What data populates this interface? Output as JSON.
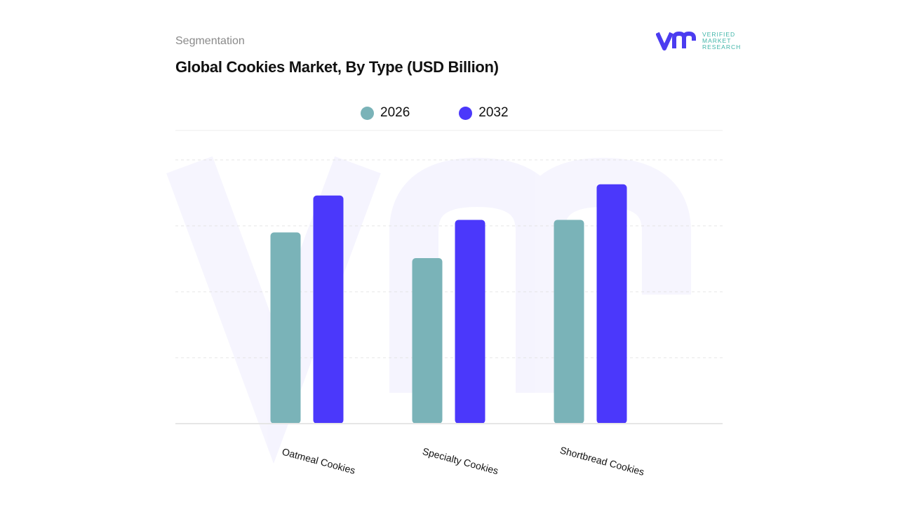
{
  "header": {
    "section": "Segmentation",
    "title": "Global Cookies Market, By Type (USD Billion)"
  },
  "logo": {
    "line1": "VERIFIED",
    "line2": "MARKET",
    "line3": "RESEARCH",
    "brand_color": "#4b3cf0",
    "text_color": "#3fb5a8"
  },
  "chart_data": {
    "type": "bar",
    "title": "Global Cookies Market, By Type (USD Billion)",
    "categories": [
      "Oatmeal Cookies",
      "Specialty Cookies",
      "Shortbread Cookies"
    ],
    "series": [
      {
        "name": "2026",
        "color": "#7ab3b8",
        "values": [
          2.9,
          2.51,
          3.09
        ]
      },
      {
        "name": "2032",
        "color": "#4b38fb",
        "values": [
          3.46,
          3.09,
          3.63
        ]
      }
    ],
    "ylim": [
      0,
      4
    ],
    "grid": true,
    "legend": "top-center",
    "xlabel": "",
    "ylabel": ""
  }
}
